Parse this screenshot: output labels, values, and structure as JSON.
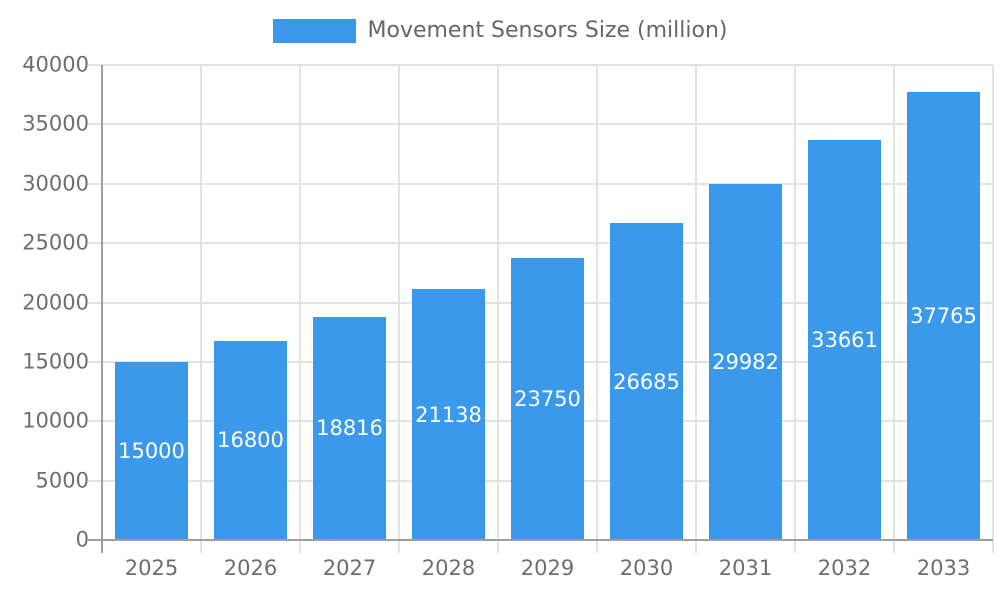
{
  "chart_data": {
    "type": "bar",
    "title": "",
    "legend": {
      "label": "Movement Sensors Size (million)",
      "position": "top"
    },
    "categories": [
      "2025",
      "2026",
      "2027",
      "2028",
      "2029",
      "2030",
      "2031",
      "2032",
      "2033"
    ],
    "series": [
      {
        "name": "Movement Sensors Size (million)",
        "values": [
          15000,
          16800,
          18816,
          21138,
          23750,
          26685,
          29982,
          33661,
          37765
        ]
      }
    ],
    "value_labels": {
      "visible": true,
      "position": "inside-center",
      "color": "#ffffff"
    },
    "xlabel": "",
    "ylabel": "",
    "ylim": [
      0,
      40000
    ],
    "y_tick_step": 5000,
    "y_ticks": [
      0,
      5000,
      10000,
      15000,
      20000,
      25000,
      30000,
      35000,
      40000
    ],
    "grid": true,
    "legend_position": "top",
    "colors": {
      "bar": "#3B99EC",
      "grid": "#E3E3E3",
      "axis": "#9E9E9E",
      "tick_label": "#6E6E6E",
      "legend_text": "#666666",
      "background": "#FFFFFF"
    }
  }
}
